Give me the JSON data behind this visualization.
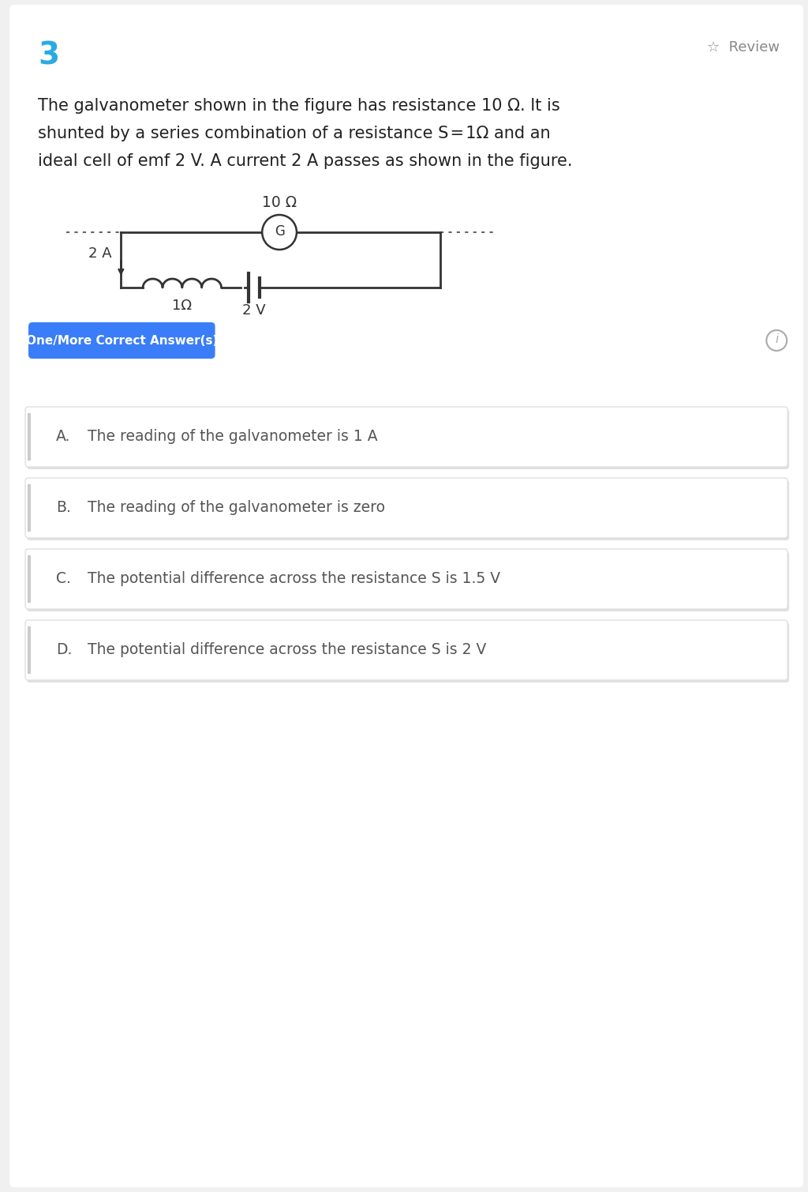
{
  "bg_color": "#f0f0f0",
  "card_bg": "#ffffff",
  "question_number": "3",
  "question_number_color": "#29abe2",
  "review_text": "☆  Review",
  "review_color": "#888888",
  "q_line1": "The galvanometer shown in the figure has resistance 10 Ω. It is",
  "q_line2": "shunted by a series combination of a resistance S = 1Ω and an",
  "q_line3": "ideal cell of emf 2 V. A current 2 A passes as shown in the figure.",
  "button_text": "One/More Correct Answer(s)",
  "button_bg": "#3a7df8",
  "button_text_color": "#ffffff",
  "options": [
    {
      "label": "A.",
      "text": "The reading of the galvanometer is 1 A"
    },
    {
      "label": "B.",
      "text": "The reading of the galvanometer is zero"
    },
    {
      "label": "C.",
      "text": "The potential difference across the resistance S is 1.5 V"
    },
    {
      "label": "D.",
      "text": "The potential difference across the resistance S is 2 V"
    }
  ],
  "option_text_color": "#555555",
  "option_border_color": "#e0e0e0"
}
